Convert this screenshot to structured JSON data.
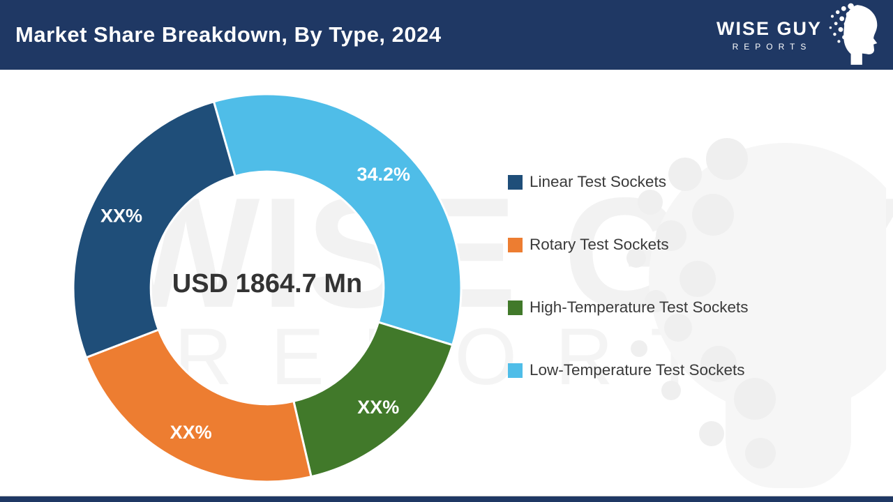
{
  "header": {
    "title": "Market Share Breakdown, By Type, 2024",
    "logo": {
      "line1": "WISE GUY",
      "line2": "REPORTS"
    }
  },
  "watermark": {
    "line1": "WISE GUY",
    "line2": "REPORTS"
  },
  "colors": {
    "header_bg": "#1F3864",
    "footer_bg": "#1F3864",
    "center_text": "#333333",
    "legend_text": "#3A3A3A"
  },
  "chart_data": {
    "type": "pie",
    "subtype": "donut",
    "title": "Market Share Breakdown, By Type, 2024",
    "center_label": "USD 1864.7 Mn",
    "series": [
      {
        "name": "Linear Test Sockets",
        "color": "#1F4E79",
        "display_label": "XX%",
        "percent": 26.4
      },
      {
        "name": "Rotary Test Sockets",
        "color": "#ED7D31",
        "display_label": "XX%",
        "percent": 22.8
      },
      {
        "name": "High-Temperature Test Sockets",
        "color": "#41792A",
        "display_label": "XX%",
        "percent": 16.6
      },
      {
        "name": "Low-Temperature Test Sockets",
        "color": "#4FBDE8",
        "display_label": "34.2%",
        "percent": 34.2
      }
    ],
    "draw_order": [
      3,
      2,
      1,
      0
    ],
    "start_angle_deg": -16,
    "donut_hole_ratio": 0.6,
    "label_radius_ratio": 0.84,
    "legend_position": "right",
    "grid": false
  }
}
